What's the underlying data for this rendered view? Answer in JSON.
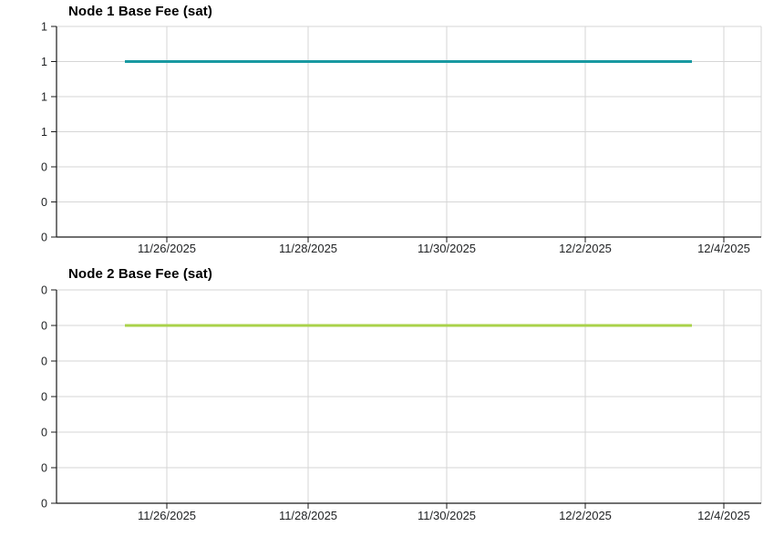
{
  "page": {
    "background_color": "#ffffff",
    "axis_color": "#1a1a1a",
    "gridline_color": "#d6d6d6"
  },
  "chart_data": [
    {
      "type": "line",
      "title": "Node 1 Base Fee (sat)",
      "x_tick_labels": [
        "11/26/2025",
        "11/28/2025",
        "11/30/2025",
        "12/2/2025",
        "12/4/2025"
      ],
      "y_tick_labels_top_to_bottom": [
        "1",
        "1",
        "1",
        "1",
        "0",
        "0",
        "0"
      ],
      "series": [
        {
          "name": "Node 1 Base Fee (sat)",
          "color": "#1999a1",
          "constant_value": 1,
          "x_start_approx": "11/25/2025",
          "x_end_approx": "12/3/2025"
        }
      ],
      "line_at_y_tick_index": 1,
      "ylim_approx": [
        0,
        1.2
      ],
      "grid": true,
      "legend_position": "none"
    },
    {
      "type": "line",
      "title": "Node 2 Base Fee (sat)",
      "x_tick_labels": [
        "11/26/2025",
        "11/28/2025",
        "11/30/2025",
        "12/2/2025",
        "12/4/2025"
      ],
      "y_tick_labels_top_to_bottom": [
        "0",
        "0",
        "0",
        "0",
        "0",
        "0",
        "0"
      ],
      "series": [
        {
          "name": "Node 2 Base Fee (sat)",
          "color": "#a9d24a",
          "constant_value": 0,
          "x_start_approx": "11/25/2025",
          "x_end_approx": "12/3/2025"
        }
      ],
      "line_at_y_tick_index": 1,
      "grid": true,
      "legend_position": "none"
    }
  ]
}
